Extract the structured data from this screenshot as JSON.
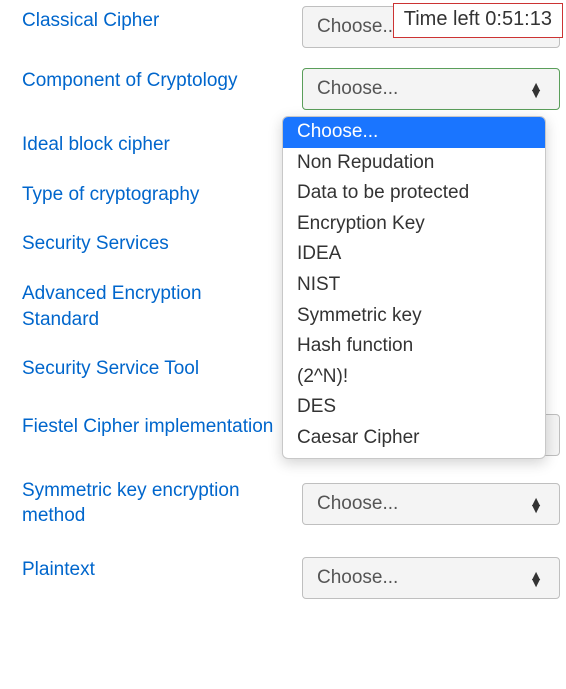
{
  "timer": {
    "label": "Time left 0:51:13"
  },
  "placeholder": "Choose...",
  "labels": {
    "classical_cipher": "Classical Cipher",
    "component_cryptology": "Component of Cryptology",
    "ideal_block": "Ideal block cipher",
    "type_crypto": "Type of cryptography",
    "security_services": "Security Services",
    "aes": "Advanced Encryption Standard",
    "sst": "Security Service Tool",
    "fiestel": "Fiestel Cipher implementation",
    "sym_method": "Symmetric key encryption method",
    "plaintext": "Plaintext"
  },
  "dropdown": {
    "options": [
      "Choose...",
      "Non Repudation",
      "Data to be protected",
      "Encryption Key",
      "IDEA",
      "NIST",
      "Symmetric key",
      "Hash function",
      "(2^N)!",
      "DES",
      "Caesar Cipher"
    ],
    "selected_index": 0
  },
  "colors": {
    "link": "#0066cc",
    "select_bg": "#f4f4f4",
    "select_border": "#bfbfbf",
    "highlight": "#1a75ff",
    "timer_border": "#cc3333"
  }
}
